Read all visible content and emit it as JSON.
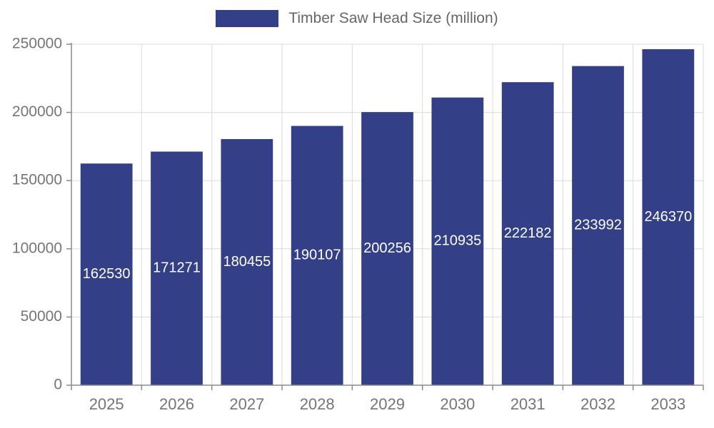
{
  "chart_data": {
    "type": "bar",
    "title": "Timber Saw Head Size (million)",
    "series_name": "Timber Saw Head Size (million)",
    "categories": [
      "2025",
      "2026",
      "2027",
      "2028",
      "2029",
      "2030",
      "2031",
      "2032",
      "2033"
    ],
    "values": [
      162530,
      171271,
      180455,
      190107,
      200256,
      210935,
      222182,
      233992,
      246370
    ],
    "xlabel": "",
    "ylabel": "",
    "ylim": [
      0,
      250000
    ],
    "yticks": [
      0,
      50000,
      100000,
      150000,
      200000,
      250000
    ],
    "grid": true,
    "legend_position": "top",
    "bar_color": "#333f87",
    "bar_label_color": "#ffffff",
    "axis_color": "#8a8a8a",
    "grid_color": "#dadada",
    "tick_label_color": "#757575"
  },
  "legend": {
    "label": "Timber Saw Head Size (million)",
    "swatch_color": "#333f87"
  }
}
